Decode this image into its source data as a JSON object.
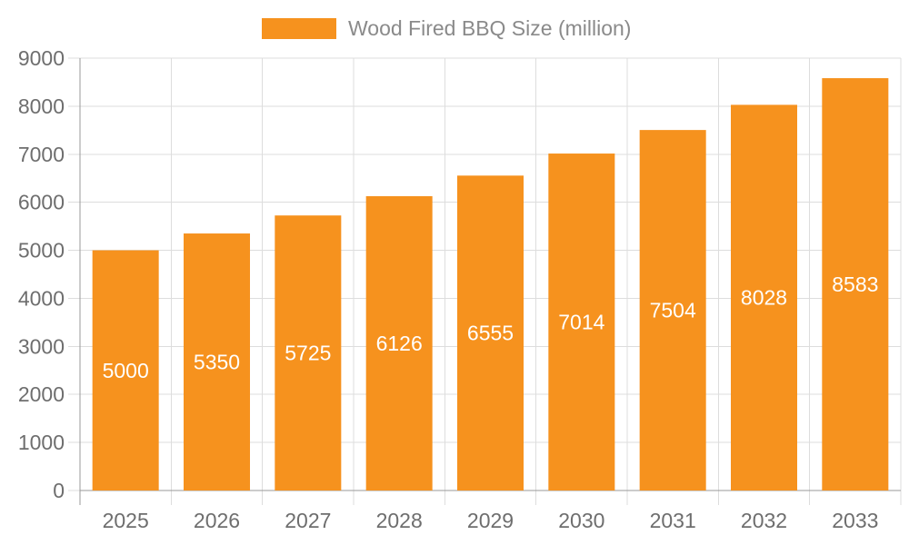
{
  "colors": {
    "bar": "#F6921E",
    "bar_label": "#FFFFFF",
    "axis_text": "#6E6E6E",
    "legend_text": "#8A8A8A",
    "axis_line": "#999999",
    "grid_line": "#DDDDDD",
    "background": "#FFFFFF"
  },
  "chart_data": {
    "type": "bar",
    "title": "Wood Fired BBQ Size (million)",
    "series_name": "Wood Fired BBQ Size (million)",
    "categories": [
      "2025",
      "2026",
      "2027",
      "2028",
      "2029",
      "2030",
      "2031",
      "2032",
      "2033"
    ],
    "values": [
      5000,
      5350,
      5725,
      6126,
      6555,
      7014,
      7504,
      8028,
      8583
    ],
    "xlabel": "",
    "ylabel": "",
    "ylim": [
      0,
      9000
    ],
    "y_ticks": [
      0,
      1000,
      2000,
      3000,
      4000,
      5000,
      6000,
      7000,
      8000,
      9000
    ],
    "grid": "on",
    "legend_position": "top",
    "bar_labels_shown": true
  }
}
